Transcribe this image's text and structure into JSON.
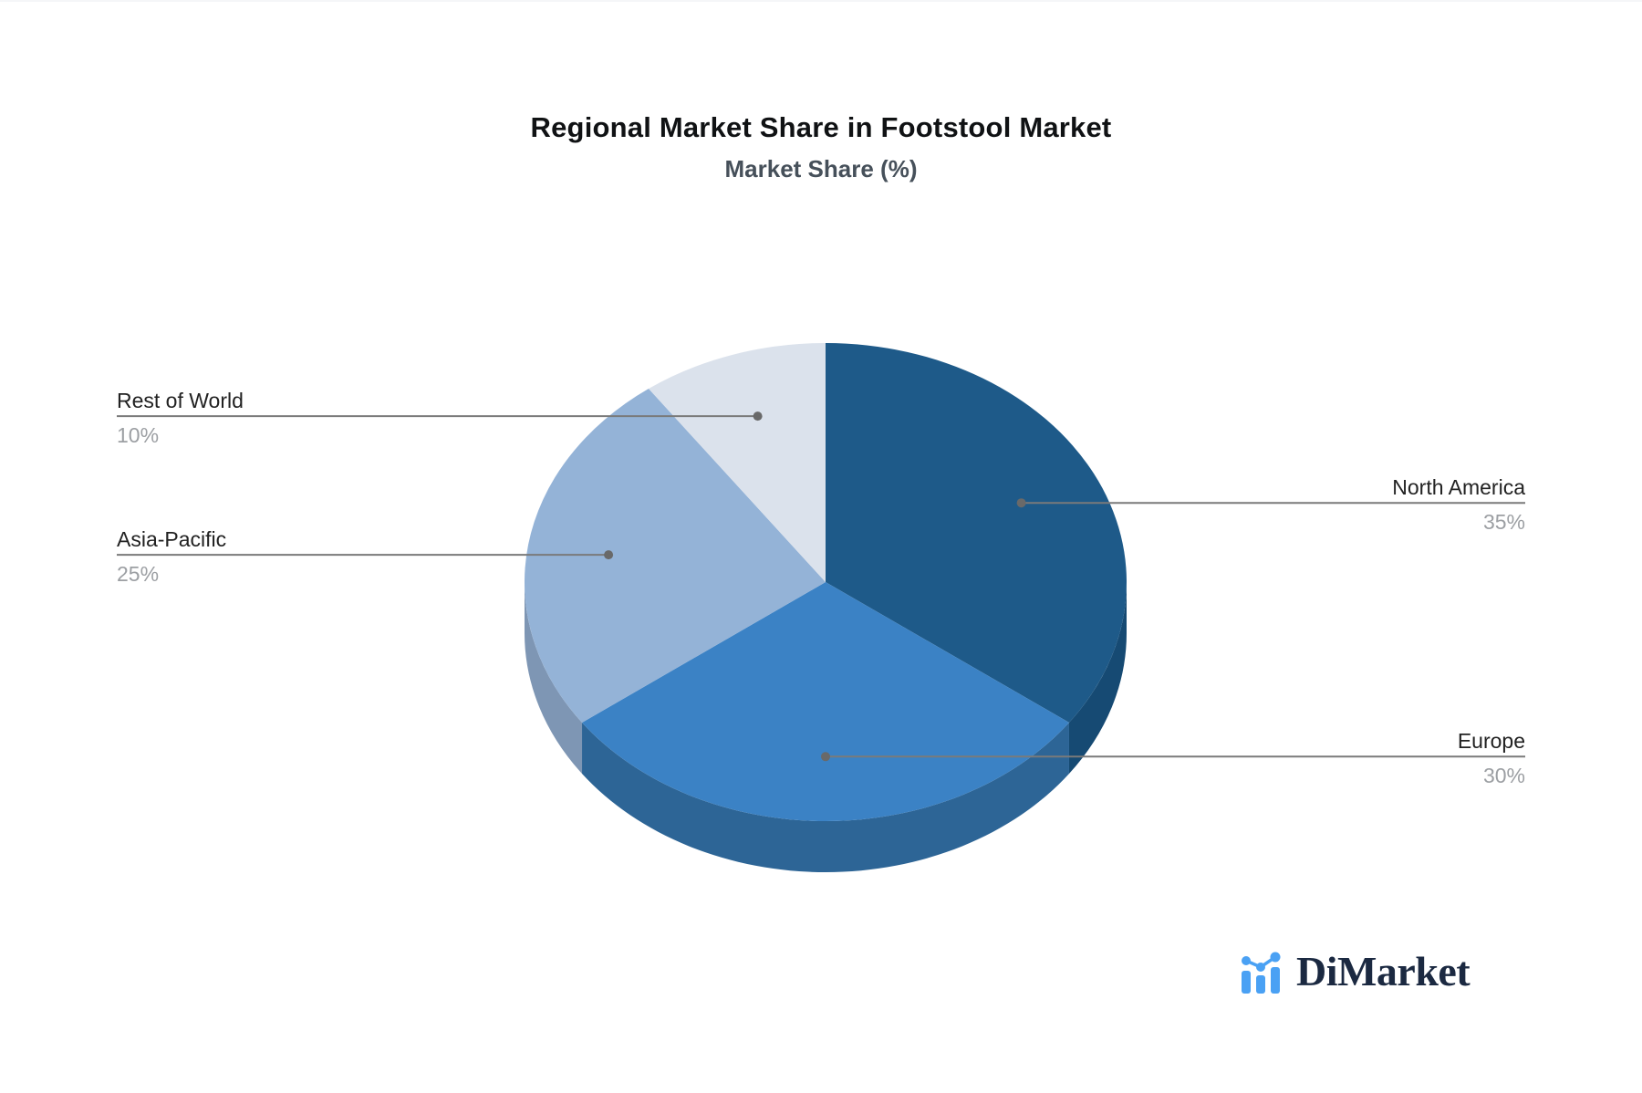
{
  "header": {
    "title": "Regional Market Share in Footstool Market",
    "subtitle": "Market Share (%)"
  },
  "chart_data": {
    "type": "pie",
    "style": "3d",
    "title": "Regional Market Share in Footstool Market",
    "subtitle": "Market Share (%)",
    "unit": "%",
    "start_angle_deg": 90,
    "direction": "clockwise",
    "slices": [
      {
        "label": "North America",
        "value": 35,
        "value_label": "35%",
        "color": "#1E5A89",
        "side_color": "#164A73",
        "label_side": "right"
      },
      {
        "label": "Europe",
        "value": 30,
        "value_label": "30%",
        "color": "#3B82C5",
        "side_color": "#2D6596",
        "label_side": "right"
      },
      {
        "label": "Asia-Pacific",
        "value": 25,
        "value_label": "25%",
        "color": "#94B3D7",
        "side_color": "#7E96B4",
        "label_side": "left"
      },
      {
        "label": "Rest of World",
        "value": 10,
        "value_label": "10%",
        "color": "#DBE2EC",
        "side_color": "#C3CEDC",
        "label_side": "left"
      }
    ],
    "legend": "none",
    "leader_line_color": "#7a7a7a",
    "dot_color": "#696969",
    "label_color": "#222222",
    "value_color": "#9c9fa3"
  },
  "branding": {
    "logo_text": "DiMarket",
    "logo_icon": "bar-line-chart-icon",
    "logo_text_color": "#1b2941",
    "logo_icon_color": "#4AA1F4"
  }
}
